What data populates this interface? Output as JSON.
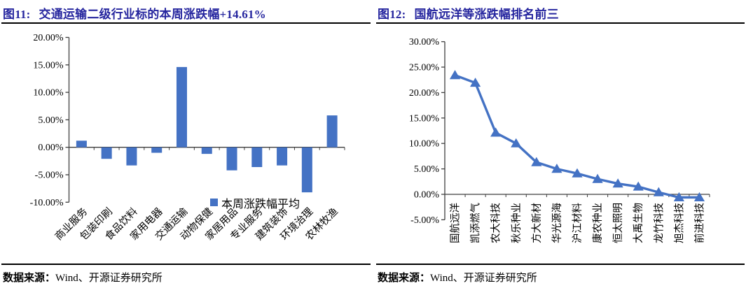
{
  "theme": {
    "title_color": "#26269F",
    "chart_blue": "#4472C4",
    "axis_color": "#3f3f3f"
  },
  "chart_data": [
    {
      "id": "fig11",
      "type": "bar",
      "fig_label": "图11:",
      "title": "交通运输二级行业标的本周涨跌幅+14.61%",
      "categories": [
        "商业服务",
        "包装印刷",
        "食品饮料",
        "家用电器",
        "交通运输",
        "动物保健",
        "家居用品",
        "专业服务",
        "建筑装饰",
        "环境治理",
        "农林牧渔"
      ],
      "values": [
        1.2,
        -2.1,
        -3.3,
        -1.0,
        14.61,
        -1.2,
        -4.2,
        -3.6,
        -3.3,
        -8.2,
        5.8
      ],
      "series_name": "本周涨跌幅平均",
      "ylim": [
        -10,
        20
      ],
      "ytick_values": [
        20,
        15,
        10,
        5,
        0,
        -5,
        -10
      ],
      "ytick_labels": [
        "20.00%",
        "15.00%",
        "10.00%",
        "5.00%",
        "0.00%",
        "-5.00%",
        "-10.00%"
      ],
      "bar_color": "#4472C4",
      "grid": false,
      "legend_position": "inside-bottom-right",
      "source_label": "数据来源：",
      "source_value": "Wind、开源证券研究所"
    },
    {
      "id": "fig12",
      "type": "line",
      "marker": "triangle",
      "fig_label": "图12:",
      "title": "国航远洋等涨跌幅排名前三",
      "categories": [
        "国航远洋",
        "凯添燃气",
        "农大科技",
        "秋乐种业",
        "方大新材",
        "华光源海",
        "沪江材料",
        "康农种业",
        "恒太照明",
        "大禹生物",
        "龙竹科技",
        "旭杰科技",
        "前进科技"
      ],
      "values": [
        23.4,
        21.9,
        12.1,
        10.0,
        6.3,
        5.0,
        4.1,
        3.0,
        2.1,
        1.5,
        0.4,
        -0.6,
        -0.6
      ],
      "ylim": [
        -5,
        30
      ],
      "ytick_values": [
        30,
        25,
        20,
        15,
        10,
        5,
        0,
        -5
      ],
      "ytick_labels": [
        "30.00%",
        "25.00%",
        "20.00%",
        "15.00%",
        "10.00%",
        "5.00%",
        "0.00%",
        "-5.00%"
      ],
      "line_color": "#4472C4",
      "grid": false,
      "source_label": "数据来源：",
      "source_value": "Wind、开源证券研究所"
    }
  ]
}
